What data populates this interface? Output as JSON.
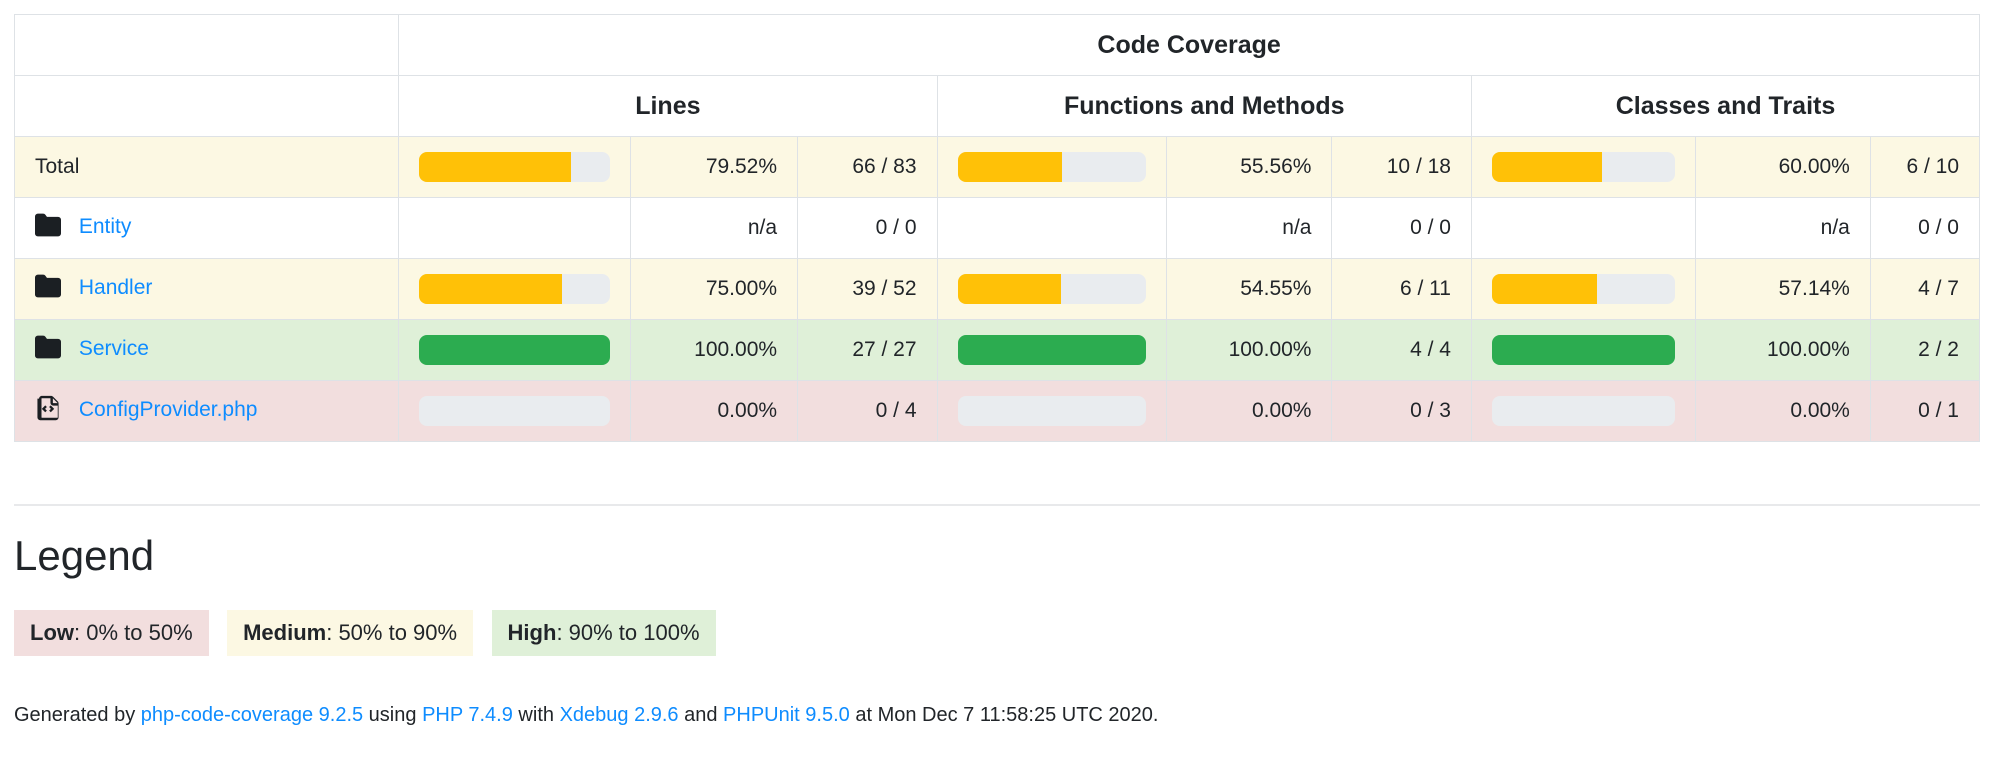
{
  "colors": {
    "link": "#0e8cff",
    "bar_warning": "#ffc107",
    "bar_success": "#2cac50",
    "bar_track": "#e9ecef",
    "row_warning": "#fcf8e3",
    "row_success": "#dff0d8",
    "row_danger": "#f2dede"
  },
  "table": {
    "title": "Code Coverage",
    "groups": [
      "Lines",
      "Functions and Methods",
      "Classes and Traits"
    ],
    "rows": [
      {
        "name": "Total",
        "icon": "none",
        "level": "warning",
        "lines": {
          "pct": "79.52%",
          "ratio": "66 / 83",
          "bar": {
            "pct": 79.52,
            "color": "#ffc107"
          }
        },
        "functions": {
          "pct": "55.56%",
          "ratio": "10 / 18",
          "bar": {
            "pct": 55.56,
            "color": "#ffc107"
          }
        },
        "classes": {
          "pct": "60.00%",
          "ratio": "6 / 10",
          "bar": {
            "pct": 60.0,
            "color": "#ffc107"
          }
        }
      },
      {
        "name": "Entity",
        "icon": "folder",
        "level": "none",
        "lines": {
          "pct": "n/a",
          "ratio": "0 / 0",
          "bar": null
        },
        "functions": {
          "pct": "n/a",
          "ratio": "0 / 0",
          "bar": null
        },
        "classes": {
          "pct": "n/a",
          "ratio": "0 / 0",
          "bar": null
        }
      },
      {
        "name": "Handler",
        "icon": "folder",
        "level": "warning",
        "lines": {
          "pct": "75.00%",
          "ratio": "39 / 52",
          "bar": {
            "pct": 75.0,
            "color": "#ffc107"
          }
        },
        "functions": {
          "pct": "54.55%",
          "ratio": "6 / 11",
          "bar": {
            "pct": 54.55,
            "color": "#ffc107"
          }
        },
        "classes": {
          "pct": "57.14%",
          "ratio": "4 / 7",
          "bar": {
            "pct": 57.14,
            "color": "#ffc107"
          }
        }
      },
      {
        "name": "Service",
        "icon": "folder",
        "level": "success",
        "lines": {
          "pct": "100.00%",
          "ratio": "27 / 27",
          "bar": {
            "pct": 100,
            "color": "#2cac50"
          }
        },
        "functions": {
          "pct": "100.00%",
          "ratio": "4 / 4",
          "bar": {
            "pct": 100,
            "color": "#2cac50"
          }
        },
        "classes": {
          "pct": "100.00%",
          "ratio": "2 / 2",
          "bar": {
            "pct": 100,
            "color": "#2cac50"
          }
        }
      },
      {
        "name": "ConfigProvider.php",
        "icon": "file-code",
        "level": "danger",
        "lines": {
          "pct": "0.00%",
          "ratio": "0 / 4",
          "bar": {
            "pct": 0,
            "color": "#e9ecef"
          }
        },
        "functions": {
          "pct": "0.00%",
          "ratio": "0 / 3",
          "bar": {
            "pct": 0,
            "color": "#e9ecef"
          }
        },
        "classes": {
          "pct": "0.00%",
          "ratio": "0 / 1",
          "bar": {
            "pct": 0,
            "color": "#e9ecef"
          }
        }
      }
    ]
  },
  "legend": {
    "title": "Legend",
    "items": [
      {
        "label": "Low",
        "range": ": 0% to 50%",
        "level": "danger"
      },
      {
        "label": "Medium",
        "range": ": 50% to 90%",
        "level": "warning"
      },
      {
        "label": "High",
        "range": ": 90% to 100%",
        "level": "success"
      }
    ]
  },
  "footer": {
    "prefix": "Generated by ",
    "links": [
      {
        "text": "php-code-coverage 9.2.5"
      },
      {
        "text": "PHP 7.4.9"
      },
      {
        "text": "Xdebug 2.9.6"
      },
      {
        "text": "PHPUnit 9.5.0"
      }
    ],
    "sep1": " using ",
    "sep2": " with ",
    "sep3": " and ",
    "suffix": " at Mon Dec 7 11:58:25 UTC 2020."
  }
}
